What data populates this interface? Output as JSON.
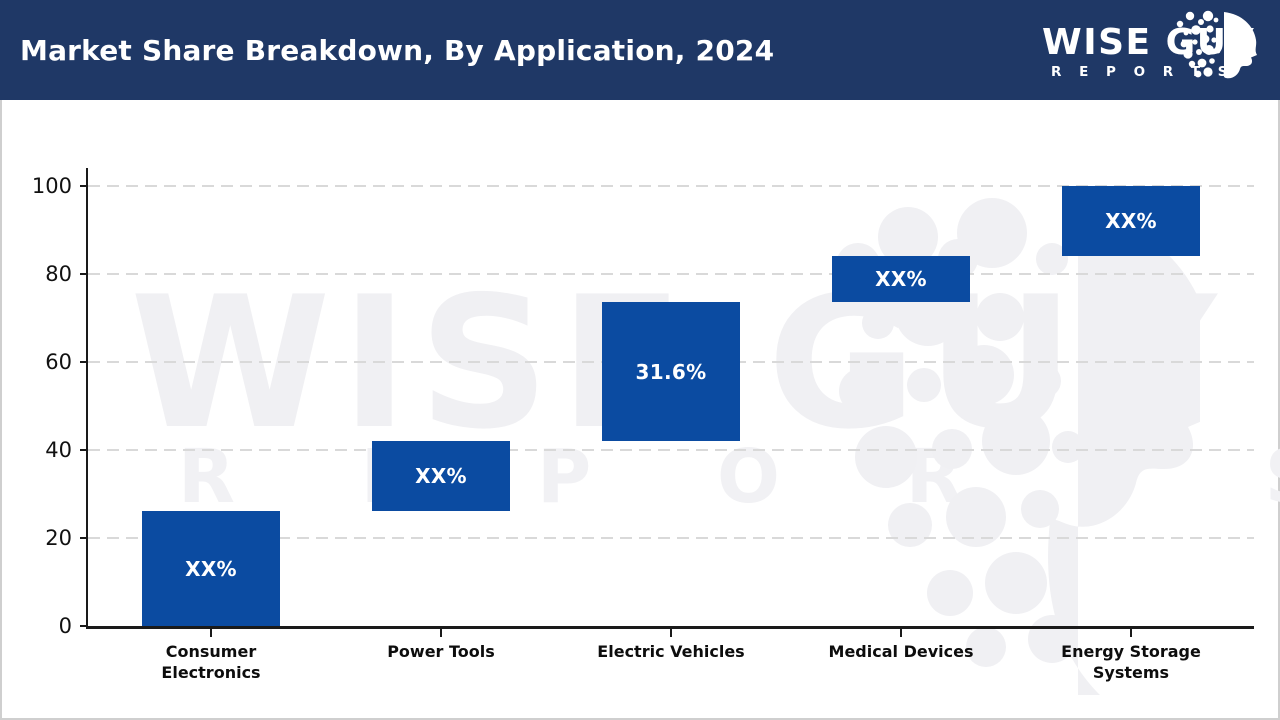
{
  "header": {
    "title": "Market Share Breakdown, By Application, 2024",
    "logo": {
      "line1": "WISE GUY",
      "line2": "R E P O R T S"
    }
  },
  "watermark": {
    "line1": "WISE GUY",
    "line2": "R E P O R T S"
  },
  "chart_data": {
    "type": "bar",
    "subtype": "waterfall",
    "title": "Market Share Breakdown, By Application, 2024",
    "categories": [
      "Consumer Electronics",
      "Power Tools",
      "Electric Vehicles",
      "Medical Devices",
      "Energy Storage Systems"
    ],
    "bars": [
      {
        "category": "Consumer Electronics",
        "lines": [
          "Consumer",
          "Electronics"
        ],
        "start": 0,
        "end": 26.1,
        "label": "XX%"
      },
      {
        "category": "Power Tools",
        "lines": [
          "Power Tools"
        ],
        "start": 26.1,
        "end": 42.0,
        "label": "XX%"
      },
      {
        "category": "Electric Vehicles",
        "lines": [
          "Electric Vehicles"
        ],
        "start": 42.0,
        "end": 73.6,
        "label": "31.6%"
      },
      {
        "category": "Medical Devices",
        "lines": [
          "Medical Devices"
        ],
        "start": 73.6,
        "end": 84.0,
        "label": "XX%"
      },
      {
        "category": "Energy Storage Systems",
        "lines": [
          "Energy Storage",
          "Systems"
        ],
        "start": 84.0,
        "end": 100,
        "label": "XX%"
      }
    ],
    "yticks": [
      0,
      20,
      40,
      60,
      80,
      100
    ],
    "ylim": [
      0,
      100
    ],
    "xlabel": "",
    "ylabel": "",
    "grid": "horizontal-dashed",
    "legend": "none",
    "colors": {
      "bar": "#0b4ba1",
      "bar_label": "#ffffff",
      "header_bg": "#1f3866",
      "axis": "#1a1a1a",
      "grid": "#d9d9d9",
      "tick_label": "#111111",
      "watermark": "#f0f0f3"
    }
  }
}
